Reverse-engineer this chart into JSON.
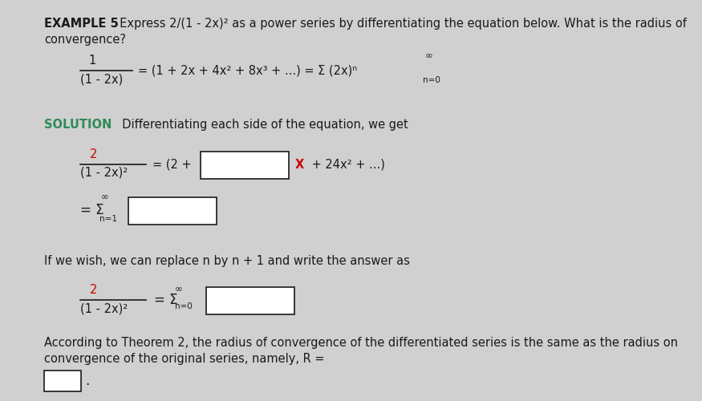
{
  "background_color": "#d0d0d0",
  "title_bold": "EXAMPLE 5",
  "title_rest": "  Express 2/(1 - 2x)² as a power series by differentiating the equation below. What is the radius of",
  "title_line2": "convergence?",
  "solution_bold": "SOLUTION",
  "solution_rest": "  Differentiating each side of the equation, we get",
  "replace_text": "If we wish, we can replace n by n + 1 and write the answer as",
  "theorem_line1": "According to Theorem 2, the radius of convergence of the differentiated series is the same as the radius on",
  "theorem_line2": "convergence of the original series, namely, R =",
  "red_color": "#cc0000",
  "teal_color": "#2e8b57",
  "text_color": "#1a1a1a",
  "box_color": "#ffffff",
  "font_size_main": 10.5,
  "font_size_small": 8.5,
  "font_size_tiny": 7.5
}
